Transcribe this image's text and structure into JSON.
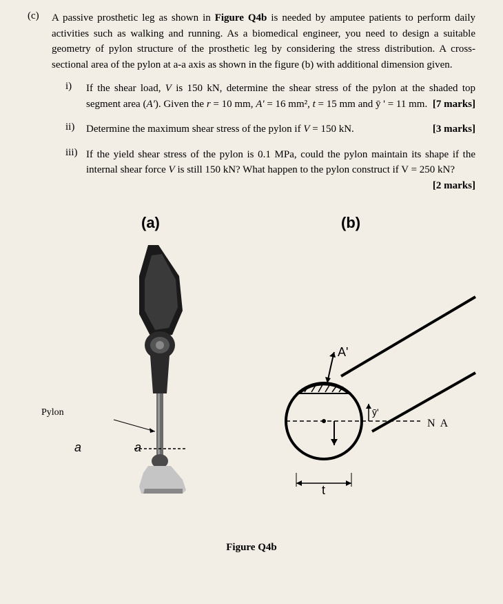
{
  "question": {
    "label": "(c)",
    "text": "A passive prosthetic leg as shown in <b>Figure Q4b</b> is needed by amputee patients to perform daily activities such as walking and running. As a biomedical engineer, you need to design a suitable geometry of pylon structure of the prosthetic leg by considering the stress distribution. A cross-sectional area of the pylon at a-a axis as shown in the figure (b) with additional dimension given."
  },
  "parts": [
    {
      "label": "i)",
      "text": "If the shear load, <i>V</i> is 150 kN, determine the shear stress of the pylon at the shaded top segment area (<i>A'</i>). Given the <i>r</i> = 10 mm, <i>A'</i> = 16 mm², <i>t</i> = 15 mm and ȳ ' = 11 mm.",
      "marks": "[7 marks]"
    },
    {
      "label": "ii)",
      "text": "Determine the maximum shear stress of the pylon if <i>V</i> = 150 kN.",
      "marks": "[3 marks]"
    },
    {
      "label": "iii)",
      "text": "If the yield shear stress of the pylon is 0.1 MPa, could the pylon maintain its shape if the internal shear force <i>V</i> is still 150 kN? What happen to the pylon construct if V = 250 kN?",
      "marks": "[2 marks]"
    }
  ],
  "figure": {
    "label_a": "(a)",
    "label_b": "(b)",
    "pylon_label": "Pylon",
    "section_a_left": "a",
    "section_a_right": "a",
    "na_label": "N A",
    "a_prime": "A'",
    "t_label": "t",
    "caption": "Figure Q4b"
  },
  "colors": {
    "background": "#f2ede5",
    "text": "#000000",
    "prosthetic_dark": "#2a2a2a",
    "prosthetic_mid": "#6a6a6a",
    "prosthetic_light": "#c5c5c5",
    "stroke": "#000000"
  }
}
